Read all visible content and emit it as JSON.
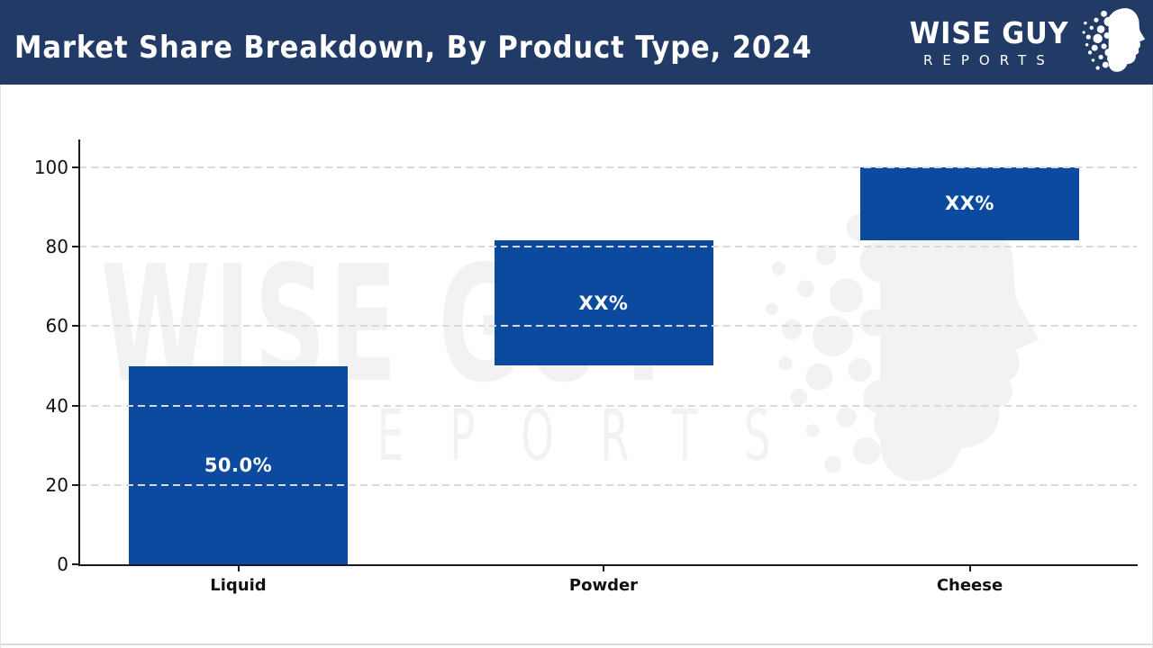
{
  "header": {
    "title": "Market Share Breakdown, By Product Type, 2024",
    "logo": {
      "name_line": "WISE GUY",
      "sub_line": "REPORTS"
    }
  },
  "watermark": {
    "line1": "WISE GUY",
    "line2": "REPORTS"
  },
  "colors": {
    "header_bg": "#213a66",
    "bar_blue": "#0c4aa0",
    "gridline": "#d9d9d9",
    "watermark": "#f2f2f2",
    "bar_label_text": "#ffffff"
  },
  "chart_data": {
    "type": "bar",
    "subtype": "waterfall",
    "title": "Market Share Breakdown, By Product Type, 2024",
    "categories": [
      "Liquid",
      "Powder",
      "Cheese"
    ],
    "bars": [
      {
        "category": "Liquid",
        "start": 0,
        "end": 50.0,
        "value_label": "50.0%"
      },
      {
        "category": "Powder",
        "start": 50.0,
        "end": 81.7,
        "value_label": "XX%"
      },
      {
        "category": "Cheese",
        "start": 81.7,
        "end": 100.0,
        "value_label": "XX%"
      }
    ],
    "xlabel": "",
    "ylabel": "",
    "ylim": [
      0,
      100
    ],
    "yticks": [
      0,
      20,
      40,
      60,
      80,
      100
    ],
    "grid": "horizontal-dashed",
    "legend": "none",
    "bar_color": "#0c4aa0"
  }
}
